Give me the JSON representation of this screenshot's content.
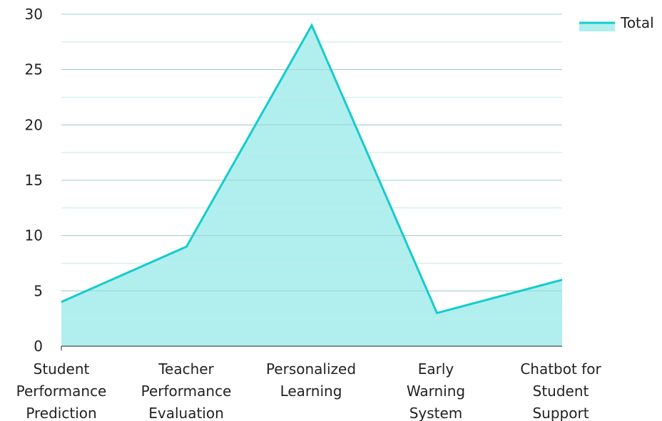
{
  "chart_data": {
    "type": "area",
    "categories": [
      [
        "Student",
        "Performance",
        "Prediction"
      ],
      [
        "Teacher",
        "Performance",
        "Evaluation"
      ],
      [
        "Personalized",
        "Learning"
      ],
      [
        "Early",
        "Warning",
        "System"
      ],
      [
        "Chatbot for",
        "Student",
        "Support"
      ]
    ],
    "series": [
      {
        "name": "Total",
        "values": [
          4,
          9,
          29,
          3,
          6
        ],
        "line_color": "#14CCCC",
        "fill_color": "#B1EEEE"
      }
    ],
    "yticks": [
      "0",
      "5",
      "10",
      "15",
      "20",
      "25",
      "30"
    ],
    "ylim": [
      0,
      30
    ],
    "grid": true,
    "minor_grid": true,
    "legend_position": "top-right",
    "grid_color": "#c8c8c8",
    "minor_grid_color": "#e6e6e6",
    "axis_color": "#222222"
  }
}
